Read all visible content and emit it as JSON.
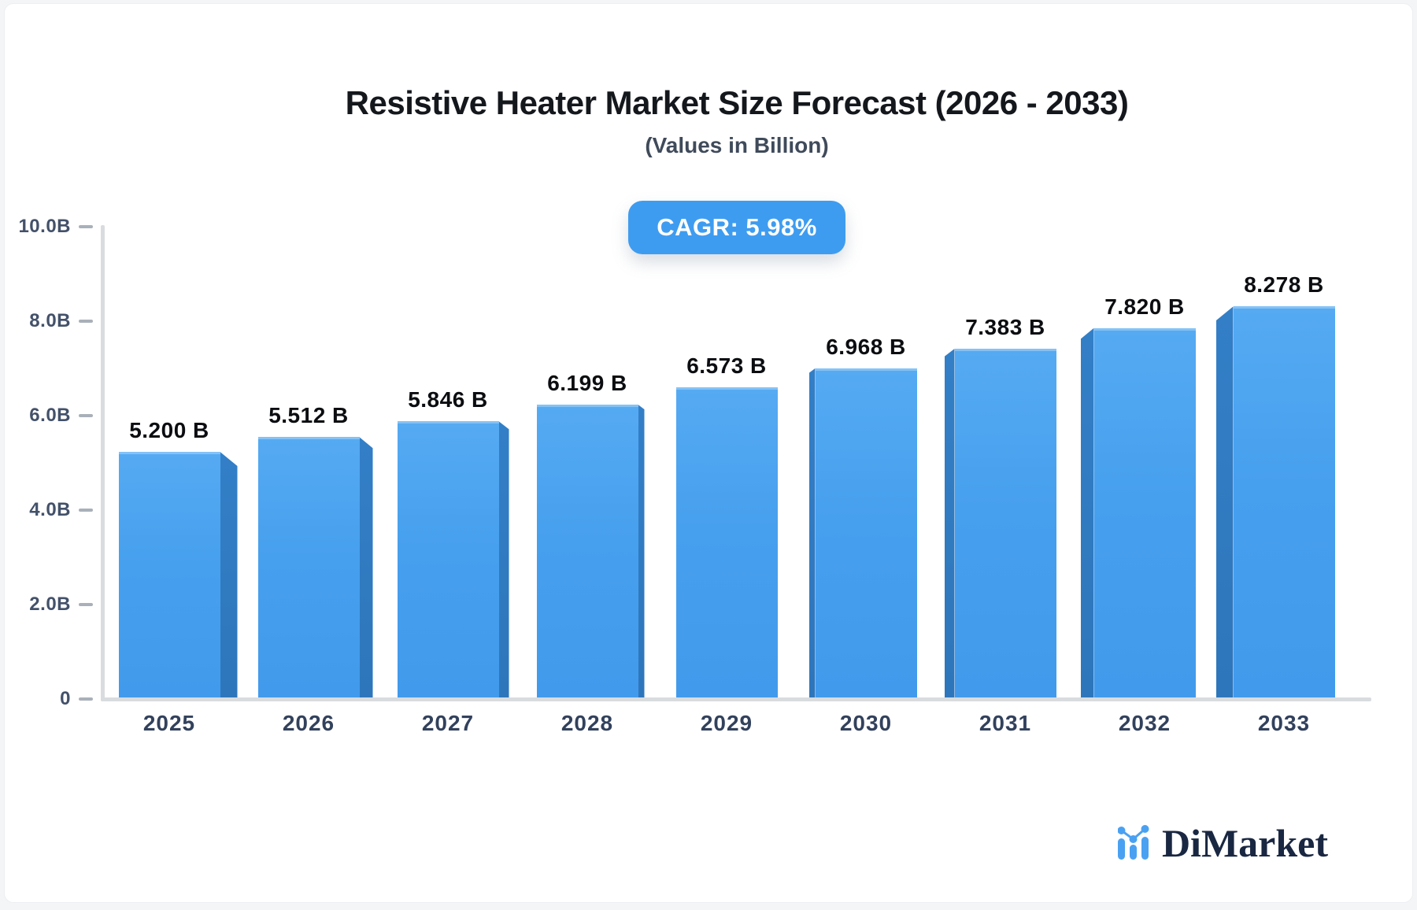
{
  "header": {
    "title": "Resistive Heater Market Size Forecast (2026 - 2033)",
    "subtitle": "(Values in Billion)",
    "cagr_label": "CAGR: 5.98%"
  },
  "chart_data": {
    "type": "bar",
    "title": "Resistive Heater Market Size Forecast (2026 - 2033)",
    "subtitle": "(Values in Billion)",
    "annotation": "CAGR: 5.98%",
    "categories": [
      "2025",
      "2026",
      "2027",
      "2028",
      "2029",
      "2030",
      "2031",
      "2032",
      "2033"
    ],
    "values": [
      5.2,
      5.512,
      5.846,
      6.199,
      6.573,
      6.968,
      7.383,
      7.82,
      8.278
    ],
    "value_labels": [
      "5.200 B",
      "5.512 B",
      "5.846 B",
      "6.199 B",
      "6.573 B",
      "6.968 B",
      "7.383 B",
      "7.820 B",
      "8.278 B"
    ],
    "xlabel": "",
    "ylabel": "",
    "ylim": [
      0,
      10
    ],
    "y_tick_values": [
      0,
      2,
      4,
      6,
      8,
      10
    ],
    "y_tick_labels": [
      "0",
      "2.0B",
      "4.0B",
      "6.0B",
      "8.0B",
      "10.0B"
    ],
    "grid": false,
    "legend": false,
    "unit": "Billion",
    "colors": {
      "bar_front": "#47a0ee",
      "bar_front_light": "#55aaf2",
      "bar_side": "#2e76bb",
      "bar_top_highlight": "#84c2f6",
      "axis_line": "#d9dcdf",
      "tick_dash": "#a9b0b9",
      "y_label": "#43516a",
      "x_label": "#32415c",
      "value_label": "#0b0d10",
      "badge_background": "#3e9cf0",
      "badge_text": "#ffffff"
    }
  },
  "branding": {
    "logo_text": "DiMarket",
    "logo_color": "#1a2742",
    "logo_icon_color": "#4aa1f2",
    "logo_icon": "mini-bar-line-chart"
  }
}
